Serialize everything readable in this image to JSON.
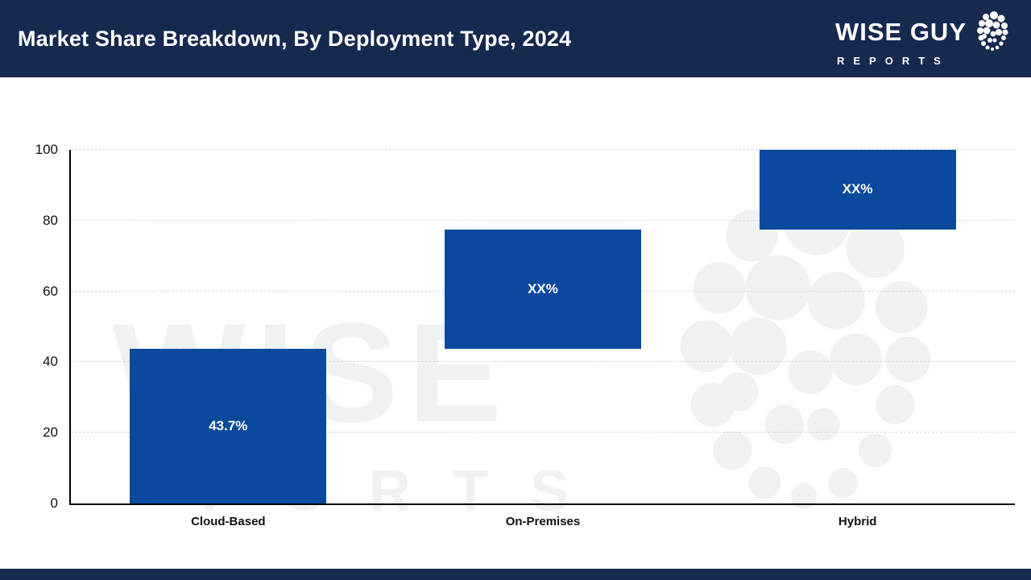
{
  "header": {
    "title": "Market Share Breakdown, By Deployment Type, 2024",
    "logo": {
      "line1": "WISE GUY",
      "line2": "REPORTS"
    }
  },
  "watermark": {
    "line1": "WISE",
    "line2": "PORTS"
  },
  "chart_data": {
    "type": "bar",
    "subtype": "waterfall",
    "title": "Market Share Breakdown, By Deployment Type, 2024",
    "categories": [
      "Cloud-Based",
      "On-Premises",
      "Hybrid"
    ],
    "segments": [
      {
        "category": "Cloud-Based",
        "start": 0,
        "end": 43.7,
        "label": "43.7%"
      },
      {
        "category": "On-Premises",
        "start": 43.7,
        "end": 77.5,
        "label": "XX%"
      },
      {
        "category": "Hybrid",
        "start": 77.5,
        "end": 100,
        "label": "XX%"
      }
    ],
    "xlabel": "",
    "ylabel": "",
    "ylim": [
      0,
      100
    ],
    "yticks": [
      0,
      20,
      40,
      60,
      80,
      100
    ],
    "grid": "horizontal-dashed",
    "legend": "none",
    "bar_color": "#0a4a9e",
    "bar_label_color": "#ffffff",
    "axis_color": "#000000",
    "header_color": "#16294f"
  }
}
